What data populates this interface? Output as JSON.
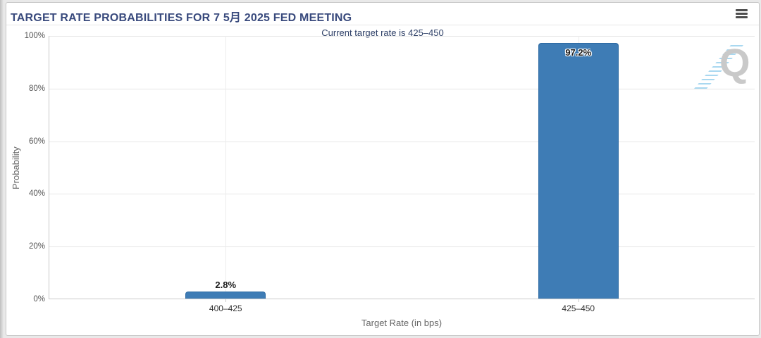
{
  "header": {
    "title": "TARGET RATE PROBABILITIES FOR 7 5月 2025 FED MEETING"
  },
  "icons": {
    "menu": "hamburger-icon"
  },
  "colors": {
    "bar_fill": "#3e7cb5",
    "bar_border": "#2d6aa3",
    "title_text": "#394a7d",
    "subtitle_text": "#2f4168",
    "watermark_gray": "#c9c9c9",
    "watermark_blue": "#a9d8f0"
  },
  "watermark": {
    "letter": "Q"
  },
  "chart_data": {
    "type": "bar",
    "title": "TARGET RATE PROBABILITIES FOR 7 5月 2025 FED MEETING",
    "subtitle": "Current target rate is 425–450",
    "categories": [
      "400–425",
      "425–450"
    ],
    "values": [
      2.8,
      97.2
    ],
    "labels": [
      "2.8%",
      "97.2%"
    ],
    "xlabel": "Target Rate (in bps)",
    "ylabel": "Probability",
    "ylim": [
      0,
      100
    ],
    "yticks": [
      "100%",
      "80%",
      "60%",
      "40%",
      "20%",
      "0%"
    ],
    "grid": true,
    "legend": false
  }
}
